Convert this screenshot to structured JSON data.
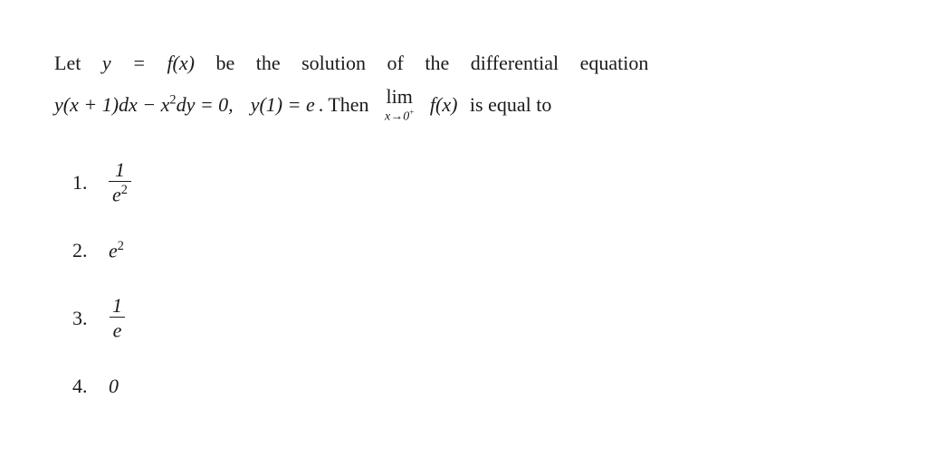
{
  "question": {
    "line1_parts": {
      "let": "Let",
      "eq1": "y = f(x)",
      "be": "be",
      "the1": "the",
      "solution": "solution",
      "of": "of",
      "the2": "the",
      "differential": "differential",
      "equation": "equation"
    },
    "line2_parts": {
      "de": "y(x + 1)dx − x",
      "de_sup": "2",
      "de_tail": "dy = 0,",
      "cond": "y(1) = e",
      "then": ". Then",
      "lim_top": "lim",
      "lim_bottom": "x→0",
      "lim_sup": "+",
      "fx": "f(x)",
      "isequal": "is equal to"
    }
  },
  "options": [
    {
      "num": "1.",
      "type": "fraction",
      "numerator": "1",
      "denom_base": "e",
      "denom_sup": "2"
    },
    {
      "num": "2.",
      "type": "power",
      "base": "e",
      "sup": "2"
    },
    {
      "num": "3.",
      "type": "fraction",
      "numerator": "1",
      "denom_base": "e",
      "denom_sup": ""
    },
    {
      "num": "4.",
      "type": "plain",
      "text": "0"
    }
  ],
  "style": {
    "text_color": "#1a1a1a",
    "background_color": "#ffffff",
    "font_size_main": 22,
    "font_size_limit_sub": 14
  }
}
